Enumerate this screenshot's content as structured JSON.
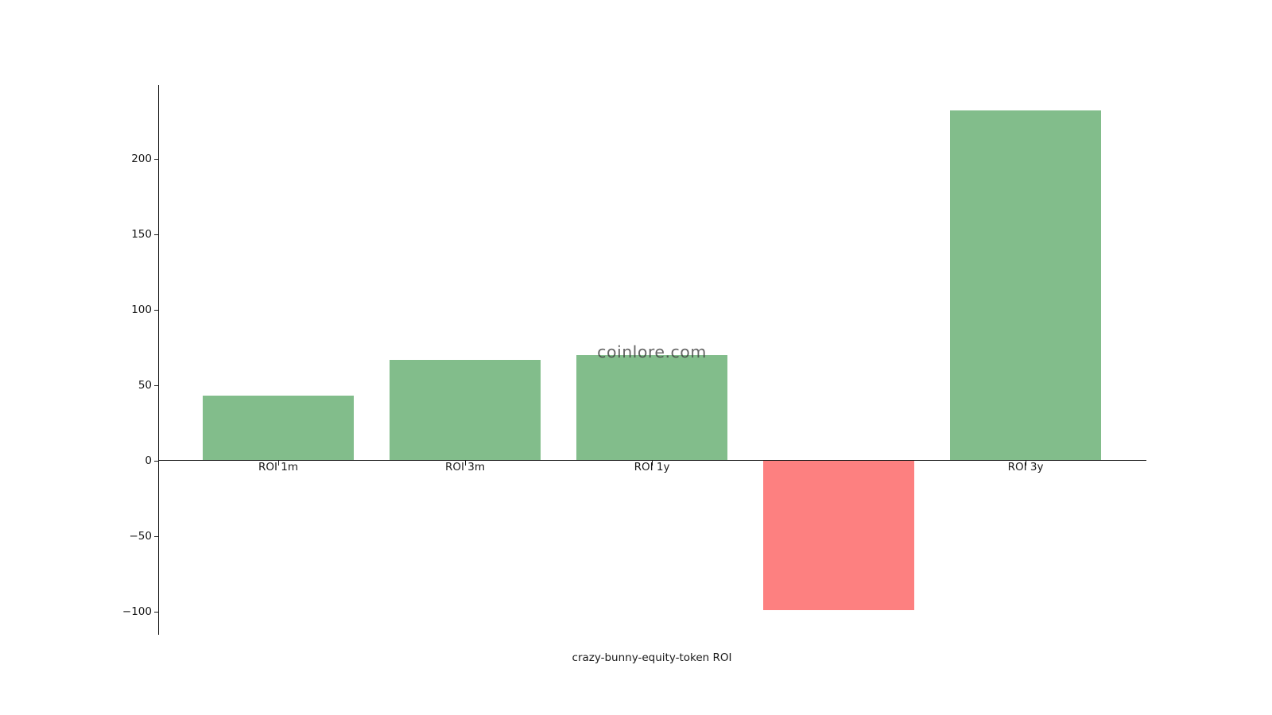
{
  "page": {
    "background_color": "#ffffff"
  },
  "watermark": {
    "text": "coinlore.com",
    "color": "#3c3c3c"
  },
  "footer_title": {
    "text": "crazy-bunny-equity-token ROI"
  },
  "chart_data": {
    "type": "bar",
    "title": "crazy-bunny-equity-token ROI",
    "xlabel": "",
    "ylabel": "",
    "categories": [
      "ROI 1m",
      "ROI 3m",
      "ROI 1y",
      "",
      "ROI 3y"
    ],
    "values": [
      43,
      67,
      70,
      -99,
      232
    ],
    "yticks": [
      200,
      150,
      100,
      50,
      0,
      -50,
      -100
    ],
    "ytick_labels": [
      "200",
      "150",
      "100",
      "50",
      "0",
      "−50",
      "−100"
    ],
    "ylim": [
      -115.5,
      248.5
    ],
    "grid": false,
    "legend": null,
    "colors": {
      "positive_bar": "#82bd8b",
      "negative_bar": "#fd8080",
      "axis": "#1a1a1a",
      "tick_text": "#1a1a1a"
    }
  }
}
